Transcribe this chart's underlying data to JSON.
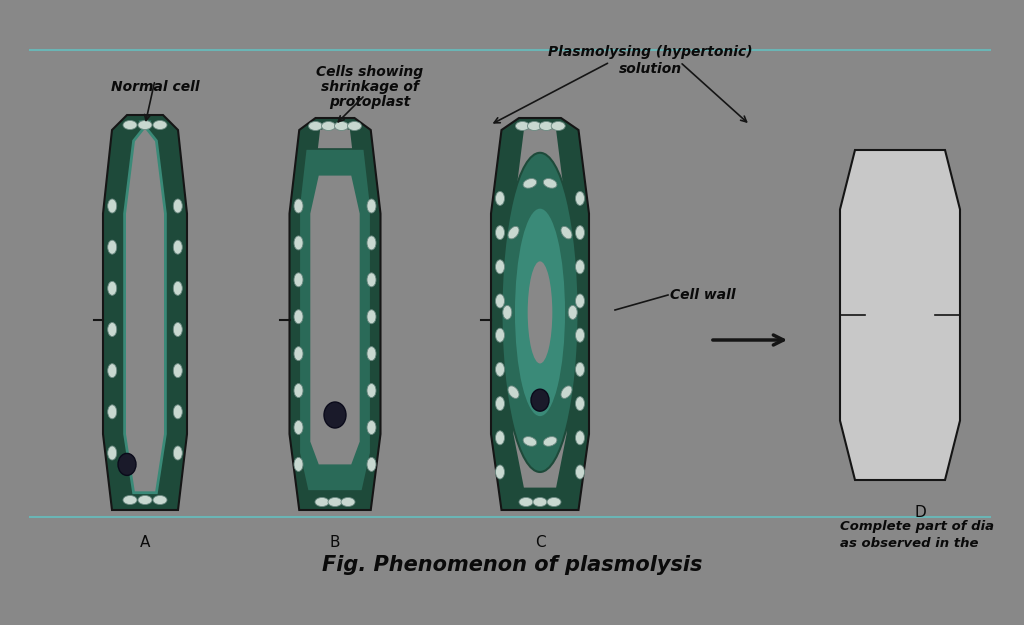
{
  "bg_color": "#878787",
  "title": "Fig. Phenomenon of plasmolysis",
  "title_fontsize": 15,
  "labels": {
    "normal_cell": "Normal cell",
    "cells_showing_1": "Cells showing",
    "cells_showing_2": "shrinkage of",
    "cells_showing_3": "protoplast",
    "plasmolysing_1": "Plasmolysing (hypertonic)",
    "plasmolysing_2": "solution",
    "cell_wall": "Cell wall",
    "A": "A",
    "B": "B",
    "C": "C",
    "D": "D",
    "caption1": "Complete part of dia",
    "caption2": "as observed in the"
  },
  "colors": {
    "teal_dark": "#1e4a3a",
    "teal_mid": "#2a6a58",
    "teal_bright": "#3a8a78",
    "dot_fill": "#c8d8d0",
    "dot_edge": "#6a8880",
    "nucleus_fill": "#1a1a2a",
    "nucleus_edge": "#0a0a1a",
    "bg": "#888888",
    "line_color": "#151515",
    "text_color": "#0a0a0a",
    "separator_line": "#6ab5b5",
    "cell_interior": "#878787",
    "cell_D_fill": "#c8c8c8",
    "cell_D_edge": "#202020"
  }
}
